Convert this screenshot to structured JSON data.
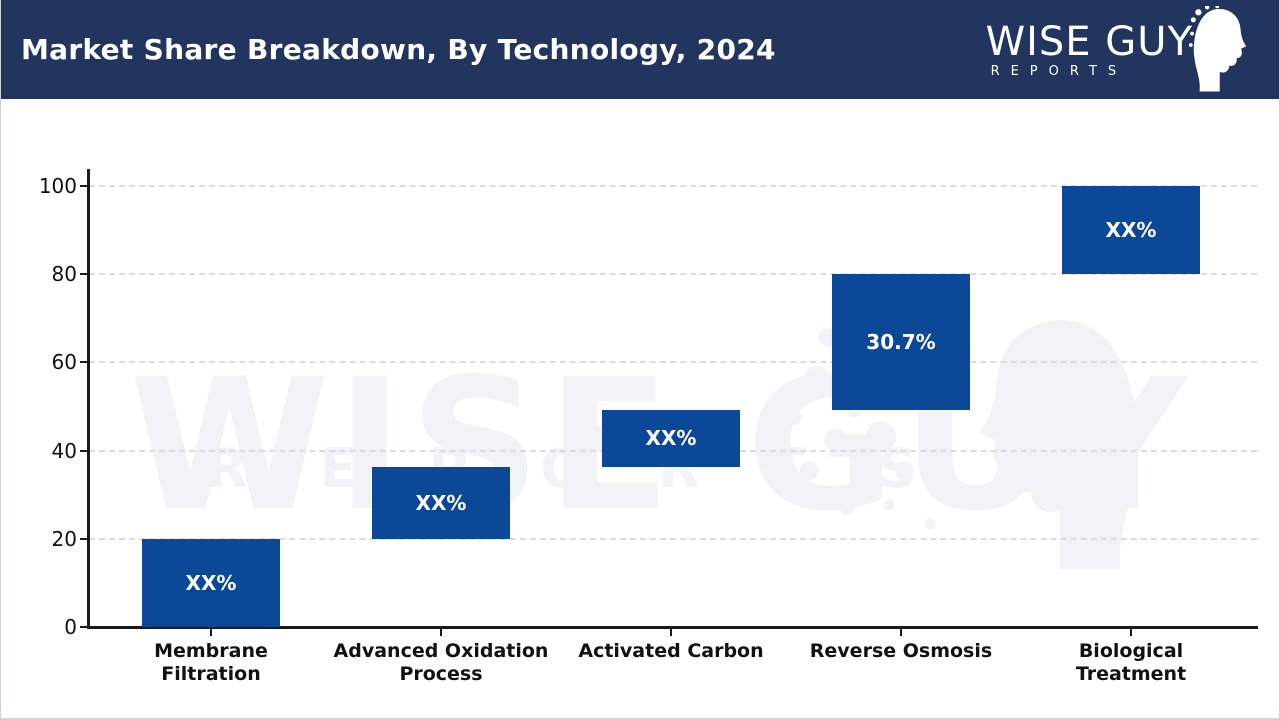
{
  "header": {
    "title": "Market Share Breakdown, By Technology, 2024",
    "logo": {
      "wordmark": "WISE GUY",
      "subtext": "REPORTS"
    }
  },
  "watermark": {
    "wordmark": "WISE GUY",
    "subtext": "REPORTS"
  },
  "colors": {
    "header_bg": "#21355e",
    "bar": "#0c4898",
    "bar_label": "#ffffff",
    "axis": "#1a1a1a",
    "grid": "#dcdcdc",
    "watermark": "#f1f3f6",
    "page_border": "#cfd2d6"
  },
  "chart_data": {
    "type": "bar",
    "variant": "waterfall",
    "title": "Market Share Breakdown, By Technology, 2024",
    "xlabel": "",
    "ylabel": "",
    "ylim": [
      0,
      100
    ],
    "yticks": [
      0,
      20,
      40,
      60,
      80,
      100
    ],
    "grid": "horizontal-dashed",
    "legend": "none",
    "categories": [
      "Membrane Filtration",
      "Advanced Oxidation Process",
      "Activated Carbon",
      "Reverse Osmosis",
      "Biological Treatment"
    ],
    "category_label_lines": [
      [
        "Membrane",
        "Filtration"
      ],
      [
        "Advanced Oxidation",
        "Process"
      ],
      [
        "Activated Carbon"
      ],
      [
        "Reverse Osmosis"
      ],
      [
        "Biological",
        "Treatment"
      ]
    ],
    "segments": [
      {
        "category": "Membrane Filtration",
        "start": 0,
        "end": 20,
        "label": "XX%"
      },
      {
        "category": "Advanced Oxidation Process",
        "start": 20,
        "end": 36.2,
        "label": "XX%"
      },
      {
        "category": "Activated Carbon",
        "start": 36.2,
        "end": 49.3,
        "label": "XX%"
      },
      {
        "category": "Reverse Osmosis",
        "start": 49.3,
        "end": 80,
        "label": "30.7%"
      },
      {
        "category": "Biological Treatment",
        "start": 80,
        "end": 100,
        "label": "XX%"
      }
    ]
  }
}
